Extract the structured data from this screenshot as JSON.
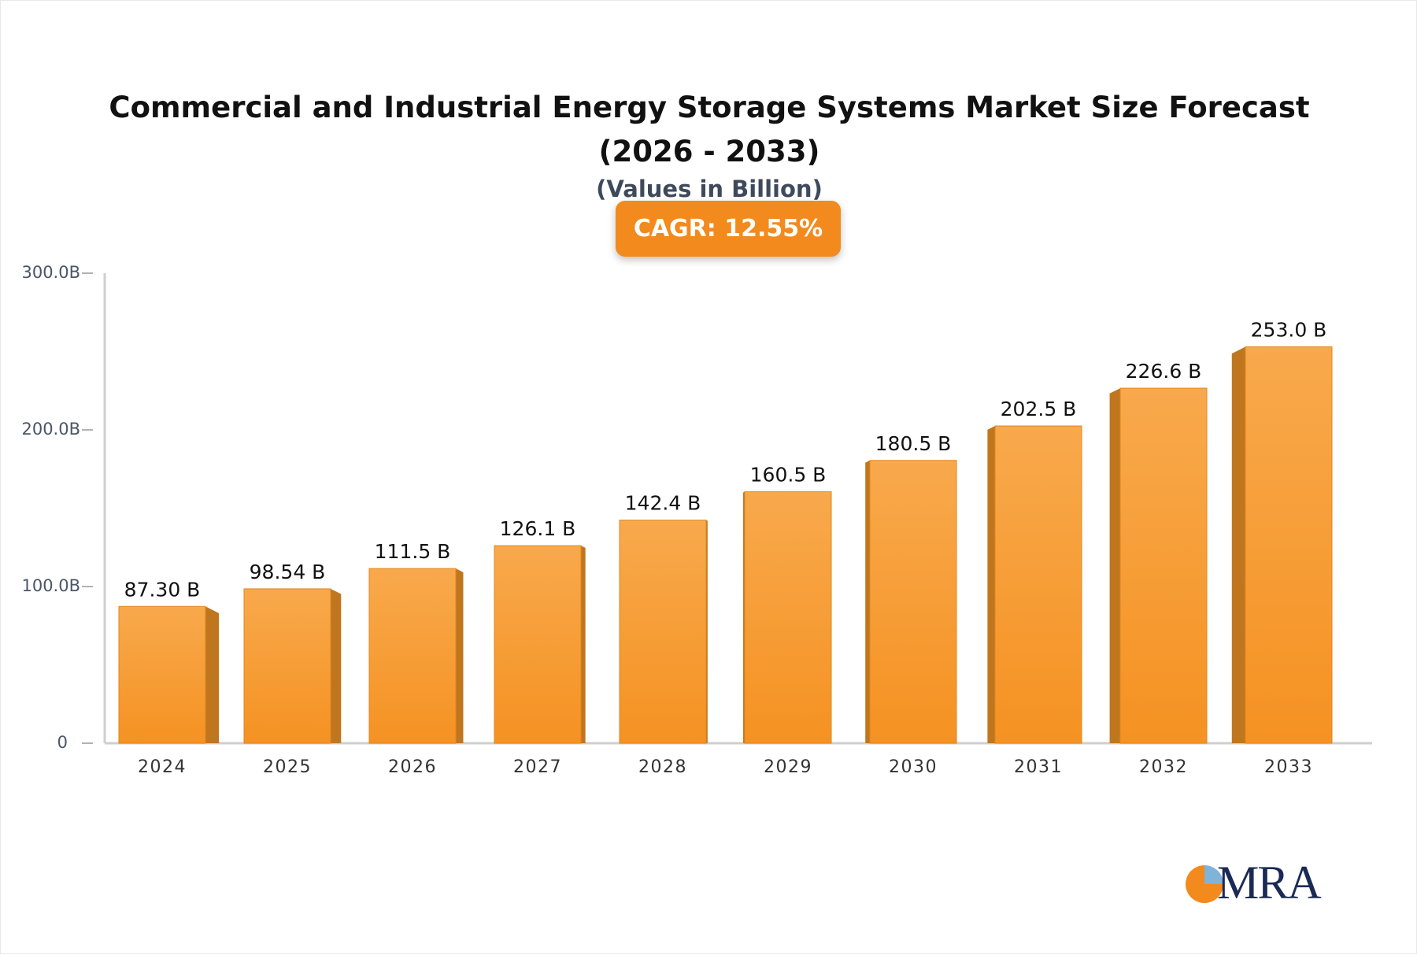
{
  "chart_data": {
    "type": "bar3d",
    "title": "Commercial and Industrial Energy Storage Systems Market Size Forecast (2026 - 2033)",
    "subtitle": "(Values in Billion)",
    "badge": "CAGR: 12.55%",
    "logo": "MRA",
    "categories": [
      "2024",
      "2025",
      "2026",
      "2027",
      "2028",
      "2029",
      "2030",
      "2031",
      "2032",
      "2033"
    ],
    "values": [
      87.3,
      98.54,
      111.5,
      126.1,
      142.4,
      160.5,
      180.5,
      202.5,
      226.6,
      253.0
    ],
    "value_labels": [
      "87.30 B",
      "98.54 B",
      "111.5 B",
      "126.1 B",
      "142.4 B",
      "160.5 B",
      "180.5 B",
      "202.5 B",
      "226.6 B",
      "253.0 B"
    ],
    "color": "#f59a2e",
    "ylim": [
      0,
      300
    ],
    "yticks": [
      {
        "value": 0,
        "label": "0"
      },
      {
        "value": 100,
        "label": "100.0B"
      },
      {
        "value": 200,
        "label": "200.0B"
      },
      {
        "value": 300,
        "label": "300.0B"
      }
    ]
  }
}
